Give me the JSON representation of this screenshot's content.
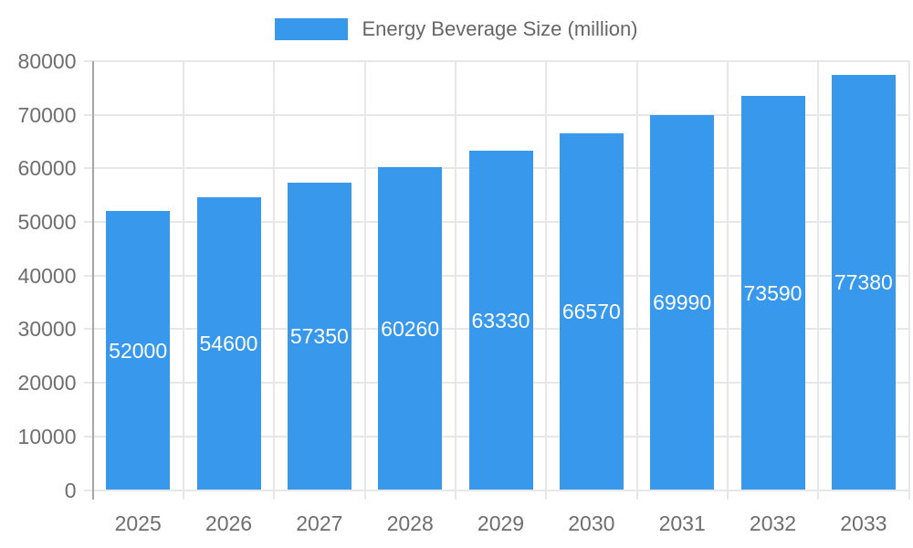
{
  "legend": {
    "label": "Energy Beverage Size (million)"
  },
  "colors": {
    "bar": "#3898EC",
    "grid": "#e7e7e7",
    "axis": "#a6a6a6",
    "axis_text": "#6e6e6e",
    "legend_text": "#666666",
    "bar_label_text": "#ffffff"
  },
  "chart_data": {
    "type": "bar",
    "title": "Energy Beverage Size (million)",
    "categories": [
      "2025",
      "2026",
      "2027",
      "2028",
      "2029",
      "2030",
      "2031",
      "2032",
      "2033"
    ],
    "values": [
      52000,
      54600,
      57350,
      60260,
      63330,
      66570,
      69990,
      73590,
      77380
    ],
    "y_ticks": [
      0,
      10000,
      20000,
      30000,
      40000,
      50000,
      60000,
      70000,
      80000
    ],
    "ylim": [
      0,
      80000
    ],
    "xlabel": "",
    "ylabel": "",
    "grid": "on",
    "legend_position": "top-center",
    "value_labels": "centered-inside-bars"
  }
}
